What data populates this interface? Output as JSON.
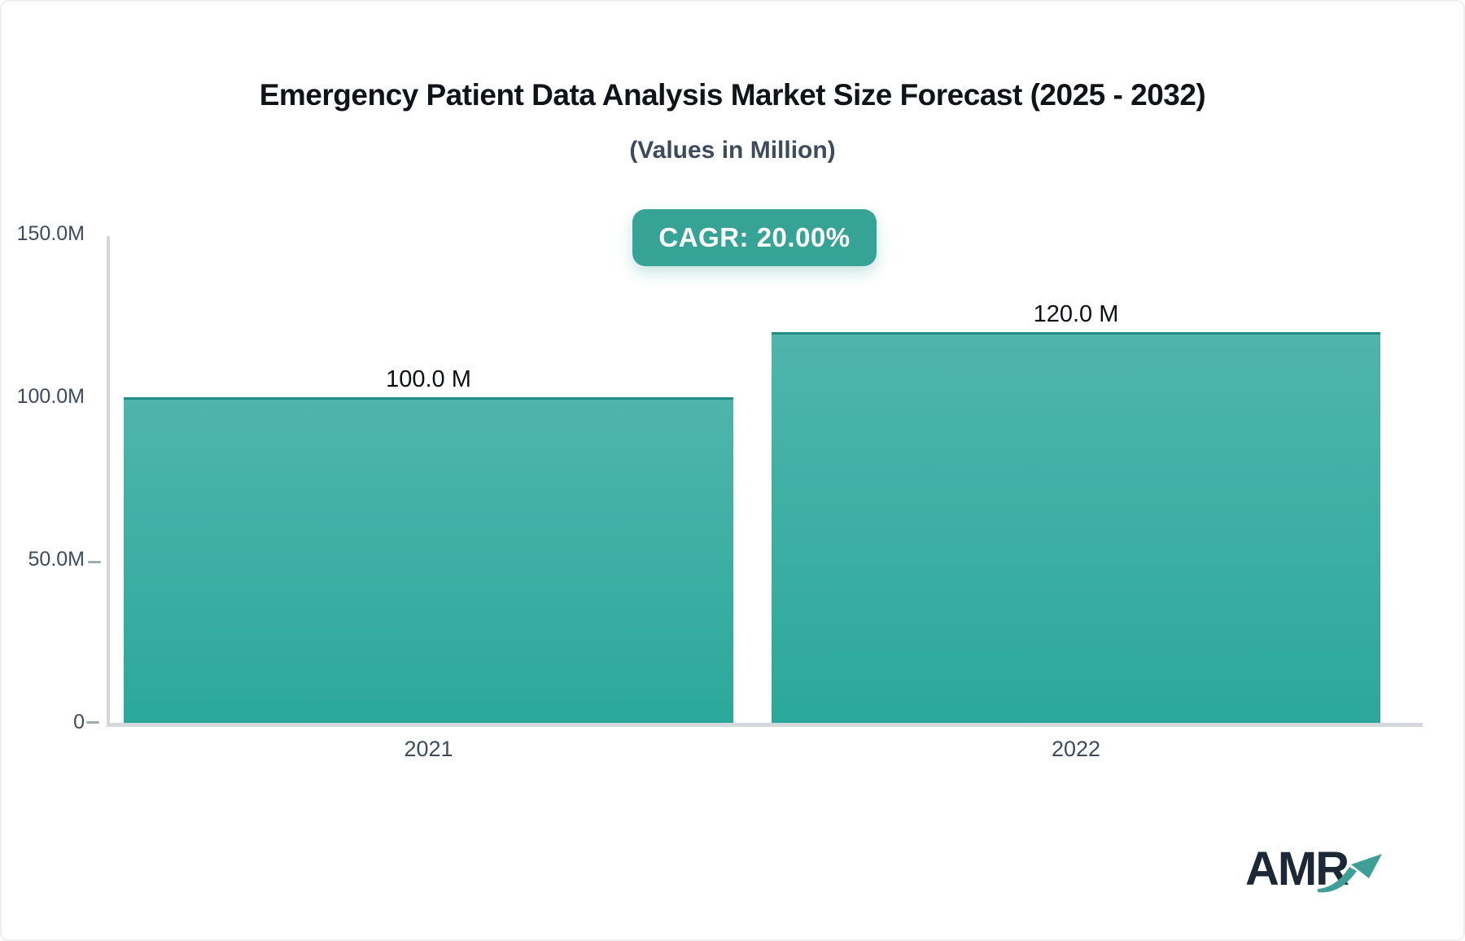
{
  "header": {
    "title": "Emergency Patient Data Analysis Market Size Forecast (2025 - 2032)",
    "subtitle": "(Values in Million)",
    "cagr_badge": "CAGR: 20.00%"
  },
  "logo": {
    "text": "AMR",
    "icon": "growth-arrow-icon"
  },
  "colors": {
    "accent": "#36a396",
    "bar_top": "#4fb5ac",
    "bar_bottom": "#2ba89b",
    "bar_border": "#208e84",
    "axis": "#d6d8dd",
    "label": "#3e4b5d",
    "title": "#101418",
    "logo_ink": "#1c2836",
    "logo_arrow": "#3f9e95"
  },
  "chart_data": {
    "type": "bar",
    "title": "Emergency Patient Data Analysis Market Size Forecast (2025 - 2032)",
    "subtitle": "(Values in Million)",
    "categories": [
      "2021",
      "2022"
    ],
    "values": [
      100.0,
      120.0
    ],
    "value_labels": [
      "100.0 M",
      "120.0 M"
    ],
    "unit": "Million",
    "cagr": "20.00%",
    "ylim": [
      0,
      150
    ],
    "yticks": [
      150,
      100,
      50,
      0
    ],
    "ytick_labels": [
      "150.0M",
      "100.0M",
      "50.0M",
      "0"
    ],
    "xlabel": "",
    "ylabel": "",
    "grid": false,
    "legend": "none"
  }
}
